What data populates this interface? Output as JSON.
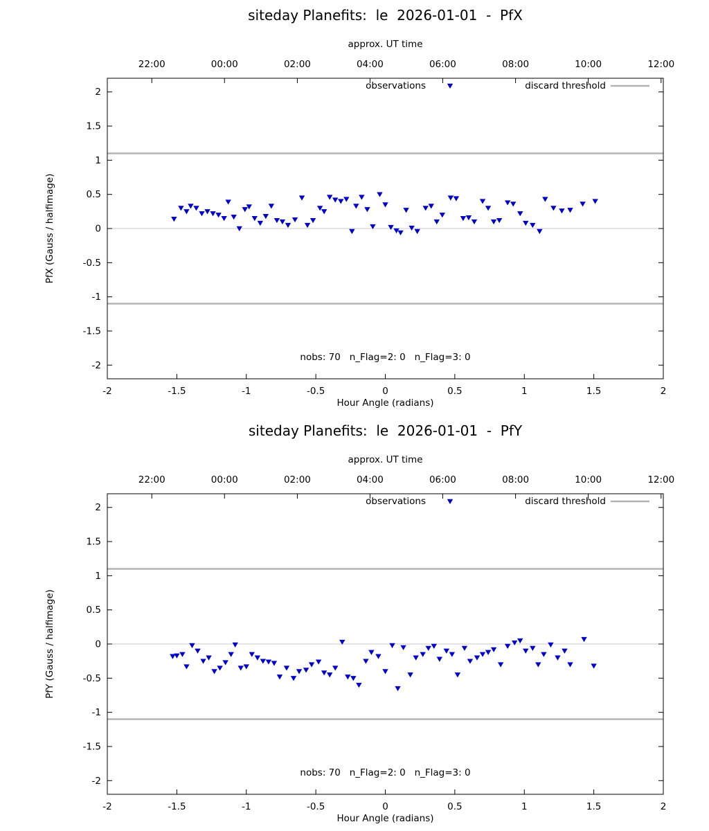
{
  "page": {
    "background_color": "#ffffff"
  },
  "chart_data": [
    {
      "type": "scatter",
      "title": "siteday Planefits:  le  2026-01-01  -  PfX",
      "top_axis_label": "approx. UT time",
      "xlabel": "Hour Angle (radians)",
      "ylabel": "PfX (Gauss / halfimage)",
      "xlim": [
        -2,
        2
      ],
      "ylim": [
        -2.2,
        2.2
      ],
      "x_ticks": [
        -2,
        -1.5,
        -1,
        -0.5,
        0,
        0.5,
        1,
        1.5,
        2
      ],
      "y_ticks": [
        -2,
        -1.5,
        -1,
        -0.5,
        0,
        0.5,
        1,
        1.5,
        2
      ],
      "top_ticks": [
        {
          "label": "22:00",
          "x": -1.68
        },
        {
          "label": "00:00",
          "x": -1.157
        },
        {
          "label": "02:00",
          "x": -0.633
        },
        {
          "label": "04:00",
          "x": -0.11
        },
        {
          "label": "06:00",
          "x": 0.413
        },
        {
          "label": "08:00",
          "x": 0.937
        },
        {
          "label": "10:00",
          "x": 1.46
        },
        {
          "label": "12:00",
          "x": 1.984
        }
      ],
      "legend": [
        {
          "label": "observations",
          "marker": "triangle-down"
        },
        {
          "label": "discard threshold",
          "marker": "line"
        }
      ],
      "zero_line_y": 0,
      "threshold_y": [
        1.1,
        -1.1
      ],
      "annotation": "nobs: 70   n_Flag=2: 0   n_Flag=3: 0",
      "colors": {
        "marker": "#0000cd",
        "threshold": "#b3b3b3",
        "zero_line": "#c9c9c9"
      },
      "points": [
        [
          -1.52,
          0.14
        ],
        [
          -1.47,
          0.3
        ],
        [
          -1.43,
          0.25
        ],
        [
          -1.4,
          0.33
        ],
        [
          -1.36,
          0.3
        ],
        [
          -1.32,
          0.22
        ],
        [
          -1.28,
          0.25
        ],
        [
          -1.24,
          0.22
        ],
        [
          -1.2,
          0.2
        ],
        [
          -1.16,
          0.15
        ],
        [
          -1.13,
          0.39
        ],
        [
          -1.09,
          0.17
        ],
        [
          -1.05,
          0.0
        ],
        [
          -1.01,
          0.28
        ],
        [
          -0.98,
          0.32
        ],
        [
          -0.94,
          0.15
        ],
        [
          -0.9,
          0.08
        ],
        [
          -0.86,
          0.18
        ],
        [
          -0.82,
          0.33
        ],
        [
          -0.78,
          0.12
        ],
        [
          -0.74,
          0.1
        ],
        [
          -0.7,
          0.05
        ],
        [
          -0.65,
          0.13
        ],
        [
          -0.6,
          0.45
        ],
        [
          -0.56,
          0.05
        ],
        [
          -0.52,
          0.12
        ],
        [
          -0.47,
          0.3
        ],
        [
          -0.44,
          0.25
        ],
        [
          -0.4,
          0.46
        ],
        [
          -0.36,
          0.42
        ],
        [
          -0.32,
          0.4
        ],
        [
          -0.28,
          0.43
        ],
        [
          -0.24,
          -0.04
        ],
        [
          -0.21,
          0.33
        ],
        [
          -0.17,
          0.46
        ],
        [
          -0.13,
          0.28
        ],
        [
          -0.09,
          0.03
        ],
        [
          -0.04,
          0.5
        ],
        [
          0.0,
          0.35
        ],
        [
          0.04,
          0.02
        ],
        [
          0.08,
          -0.03
        ],
        [
          0.11,
          -0.06
        ],
        [
          0.15,
          0.27
        ],
        [
          0.19,
          0.01
        ],
        [
          0.23,
          -0.04
        ],
        [
          0.29,
          0.3
        ],
        [
          0.33,
          0.33
        ],
        [
          0.37,
          0.1
        ],
        [
          0.41,
          0.2
        ],
        [
          0.47,
          0.45
        ],
        [
          0.51,
          0.44
        ],
        [
          0.56,
          0.15
        ],
        [
          0.6,
          0.16
        ],
        [
          0.64,
          0.1
        ],
        [
          0.7,
          0.4
        ],
        [
          0.74,
          0.3
        ],
        [
          0.78,
          0.1
        ],
        [
          0.82,
          0.12
        ],
        [
          0.88,
          0.38
        ],
        [
          0.92,
          0.36
        ],
        [
          0.97,
          0.22
        ],
        [
          1.01,
          0.08
        ],
        [
          1.06,
          0.05
        ],
        [
          1.11,
          -0.04
        ],
        [
          1.15,
          0.43
        ],
        [
          1.21,
          0.3
        ],
        [
          1.27,
          0.26
        ],
        [
          1.33,
          0.27
        ],
        [
          1.42,
          0.36
        ],
        [
          1.51,
          0.4
        ]
      ]
    },
    {
      "type": "scatter",
      "title": "siteday Planefits:  le  2026-01-01  -  PfY",
      "top_axis_label": "approx. UT time",
      "xlabel": "Hour Angle (radians)",
      "ylabel": "PfY (Gauss / halfimage)",
      "xlim": [
        -2,
        2
      ],
      "ylim": [
        -2.2,
        2.2
      ],
      "x_ticks": [
        -2,
        -1.5,
        -1,
        -0.5,
        0,
        0.5,
        1,
        1.5,
        2
      ],
      "y_ticks": [
        -2,
        -1.5,
        -1,
        -0.5,
        0,
        0.5,
        1,
        1.5,
        2
      ],
      "top_ticks": [
        {
          "label": "22:00",
          "x": -1.68
        },
        {
          "label": "00:00",
          "x": -1.157
        },
        {
          "label": "02:00",
          "x": -0.633
        },
        {
          "label": "04:00",
          "x": -0.11
        },
        {
          "label": "06:00",
          "x": 0.413
        },
        {
          "label": "08:00",
          "x": 0.937
        },
        {
          "label": "10:00",
          "x": 1.46
        },
        {
          "label": "12:00",
          "x": 1.984
        }
      ],
      "legend": [
        {
          "label": "observations",
          "marker": "triangle-down"
        },
        {
          "label": "discard threshold",
          "marker": "line"
        }
      ],
      "zero_line_y": 0,
      "threshold_y": [
        1.1,
        -1.1
      ],
      "annotation": "nobs: 70   n_Flag=2: 0   n_Flag=3: 0",
      "colors": {
        "marker": "#0000cd",
        "threshold": "#b3b3b3",
        "zero_line": "#c9c9c9"
      },
      "points": [
        [
          -1.53,
          -0.18
        ],
        [
          -1.5,
          -0.17
        ],
        [
          -1.46,
          -0.15
        ],
        [
          -1.43,
          -0.33
        ],
        [
          -1.39,
          -0.02
        ],
        [
          -1.35,
          -0.1
        ],
        [
          -1.31,
          -0.25
        ],
        [
          -1.27,
          -0.2
        ],
        [
          -1.23,
          -0.4
        ],
        [
          -1.19,
          -0.35
        ],
        [
          -1.15,
          -0.27
        ],
        [
          -1.11,
          -0.15
        ],
        [
          -1.08,
          -0.01
        ],
        [
          -1.04,
          -0.35
        ],
        [
          -1.0,
          -0.33
        ],
        [
          -0.96,
          -0.15
        ],
        [
          -0.92,
          -0.2
        ],
        [
          -0.88,
          -0.25
        ],
        [
          -0.84,
          -0.26
        ],
        [
          -0.8,
          -0.28
        ],
        [
          -0.76,
          -0.48
        ],
        [
          -0.71,
          -0.35
        ],
        [
          -0.66,
          -0.5
        ],
        [
          -0.62,
          -0.4
        ],
        [
          -0.57,
          -0.38
        ],
        [
          -0.53,
          -0.3
        ],
        [
          -0.48,
          -0.26
        ],
        [
          -0.44,
          -0.42
        ],
        [
          -0.4,
          -0.45
        ],
        [
          -0.36,
          -0.35
        ],
        [
          -0.31,
          0.03
        ],
        [
          -0.27,
          -0.48
        ],
        [
          -0.23,
          -0.5
        ],
        [
          -0.19,
          -0.6
        ],
        [
          -0.14,
          -0.25
        ],
        [
          -0.1,
          -0.12
        ],
        [
          -0.05,
          -0.18
        ],
        [
          0.0,
          -0.4
        ],
        [
          0.05,
          -0.02
        ],
        [
          0.09,
          -0.65
        ],
        [
          0.13,
          -0.05
        ],
        [
          0.18,
          -0.45
        ],
        [
          0.22,
          -0.2
        ],
        [
          0.27,
          -0.15
        ],
        [
          0.31,
          -0.06
        ],
        [
          0.35,
          -0.03
        ],
        [
          0.39,
          -0.22
        ],
        [
          0.44,
          -0.1
        ],
        [
          0.48,
          -0.15
        ],
        [
          0.52,
          -0.45
        ],
        [
          0.57,
          -0.06
        ],
        [
          0.61,
          -0.25
        ],
        [
          0.66,
          -0.2
        ],
        [
          0.7,
          -0.15
        ],
        [
          0.74,
          -0.12
        ],
        [
          0.78,
          -0.08
        ],
        [
          0.83,
          -0.3
        ],
        [
          0.88,
          -0.03
        ],
        [
          0.93,
          0.02
        ],
        [
          0.97,
          0.05
        ],
        [
          1.01,
          -0.1
        ],
        [
          1.06,
          -0.06
        ],
        [
          1.1,
          -0.3
        ],
        [
          1.14,
          -0.15
        ],
        [
          1.19,
          -0.01
        ],
        [
          1.24,
          -0.2
        ],
        [
          1.29,
          -0.1
        ],
        [
          1.33,
          -0.3
        ],
        [
          1.43,
          0.07
        ],
        [
          1.5,
          -0.32
        ]
      ]
    }
  ]
}
